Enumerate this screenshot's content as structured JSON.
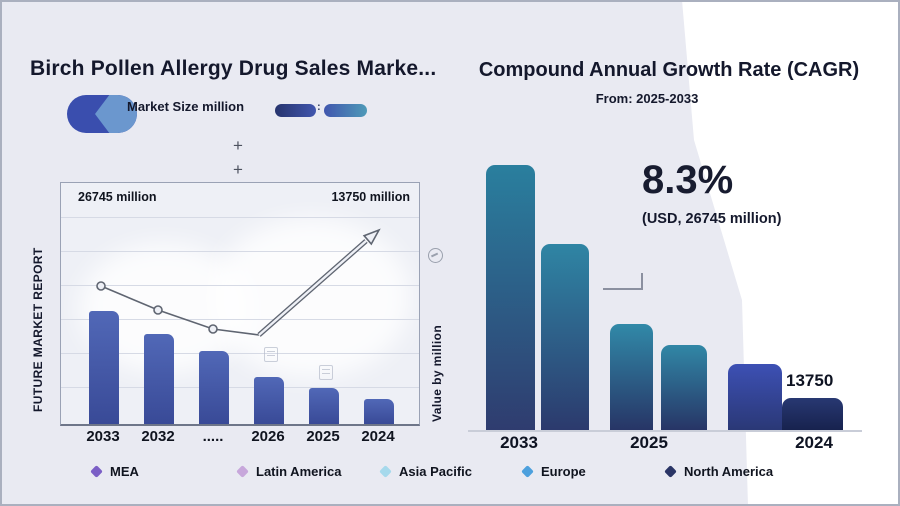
{
  "page": {
    "background": "#e9eaf2",
    "accent_navy": "#2a3566"
  },
  "left_panel": {
    "title": "Birch Pollen Allergy Drug Sales Marke...",
    "market_size_label": "Market Size million",
    "pill_colon": ":",
    "side_label": "FUTURE MARKET REPORT",
    "value_axis_label": "Value by million",
    "annotation_left": "26745 million",
    "annotation_right": "13750 million",
    "plus_glyph": "+"
  },
  "right_panel": {
    "title": "Compound Annual Growth Rate (CAGR)",
    "subtitle": "From: 2025-2033",
    "cagr_value": "8.3%",
    "cagr_detail": "(USD, 26745 million)",
    "value_label": "13750"
  },
  "legend": {
    "items": [
      {
        "label": "MEA",
        "color": "#7b5fc6",
        "x": 92
      },
      {
        "label": "Latin America",
        "color": "#c7a7db",
        "x": 238
      },
      {
        "label": "Asia Pacific",
        "color": "#a6d9ec",
        "x": 381
      },
      {
        "label": "Europe",
        "color": "#4da0dd",
        "x": 523
      },
      {
        "label": "North America",
        "color": "#2a3566",
        "x": 666
      }
    ]
  },
  "chart_data": [
    {
      "type": "bar",
      "title": "Market Size million",
      "ylabel": "Value by million",
      "xlabel": "",
      "grid": true,
      "categories": [
        "2033",
        "2032",
        ".....",
        "2026",
        "2025",
        "2024"
      ],
      "series": [
        {
          "name": "Market Size",
          "values_relative_pct": [
            100,
            80,
            65,
            42,
            32,
            22
          ]
        }
      ],
      "line_overlay": {
        "type": "line",
        "marker_values_relative_pct": [
          58,
          47,
          39
        ],
        "trend_arrow": "up-right"
      },
      "annotations": [
        {
          "text": "26745 million",
          "position": "top-left",
          "year": 2033
        },
        {
          "text": "13750 million",
          "position": "top-right",
          "year": 2024
        }
      ]
    },
    {
      "type": "bar",
      "title": "Compound Annual Growth Rate (CAGR)",
      "subtitle": "From: 2025-2033",
      "cagr_pct": 8.3,
      "base_value": "(USD, 26745 million)",
      "categories": [
        "2033",
        "2025",
        "2024"
      ],
      "series": [
        {
          "name": "bar-a",
          "values_relative_pct": [
            100,
            40,
            25
          ]
        },
        {
          "name": "bar-b",
          "values_relative_pct": [
            70,
            32,
            12
          ]
        }
      ],
      "data_labels": [
        {
          "category": "2024",
          "value": 13750
        }
      ],
      "legend_entries": [
        "MEA",
        "Latin America",
        "Asia Pacific",
        "Europe",
        "North America"
      ]
    }
  ]
}
